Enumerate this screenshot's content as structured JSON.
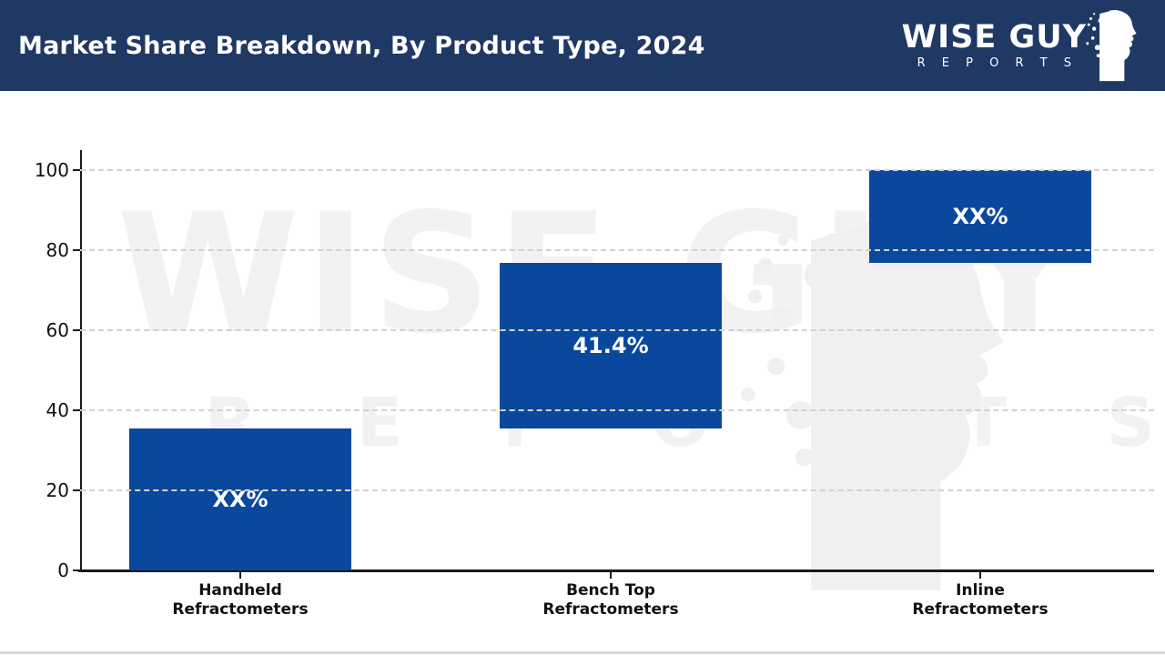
{
  "header": {
    "title": "Market Share Breakdown, By Product Type, 2024",
    "logo": {
      "line1": "WISE GUY",
      "line2": "R E P O R T S"
    }
  },
  "watermark": {
    "line1": "WISE GUY",
    "line2": "R E P O R T S"
  },
  "chart_data": {
    "type": "bar",
    "subtype": "waterfall-segments",
    "title": "Market Share Breakdown, By Product Type, 2024",
    "categories": [
      {
        "line1": "Handheld",
        "line2": "Refractometers"
      },
      {
        "line1": "Bench Top",
        "line2": "Refractometers"
      },
      {
        "line1": "Inline",
        "line2": "Refractometers"
      }
    ],
    "segments": [
      {
        "category": "Handheld Refractometers",
        "start": 0,
        "end": 35.4,
        "label": "XX%"
      },
      {
        "category": "Bench Top Refractometers",
        "start": 35.4,
        "end": 76.8,
        "label": "41.4%"
      },
      {
        "category": "Inline Refractometers",
        "start": 76.8,
        "end": 100,
        "label": "XX%"
      }
    ],
    "xlabel": "",
    "ylabel": "",
    "ylim": [
      0,
      100
    ],
    "yticks": [
      0,
      20,
      40,
      60,
      80,
      100
    ],
    "grid": "horizontal dashed lines drawn above bars",
    "legend": "none"
  },
  "colors": {
    "header_bg": "#1f3864",
    "bar": "#0a489e",
    "bar_label": "#ffffff",
    "watermark": "#f2f2f5",
    "grid": "#d2d2d2",
    "axis": "#1a1a1a",
    "tick_text": "#111111",
    "bottom_strip": "#d7d7da"
  }
}
